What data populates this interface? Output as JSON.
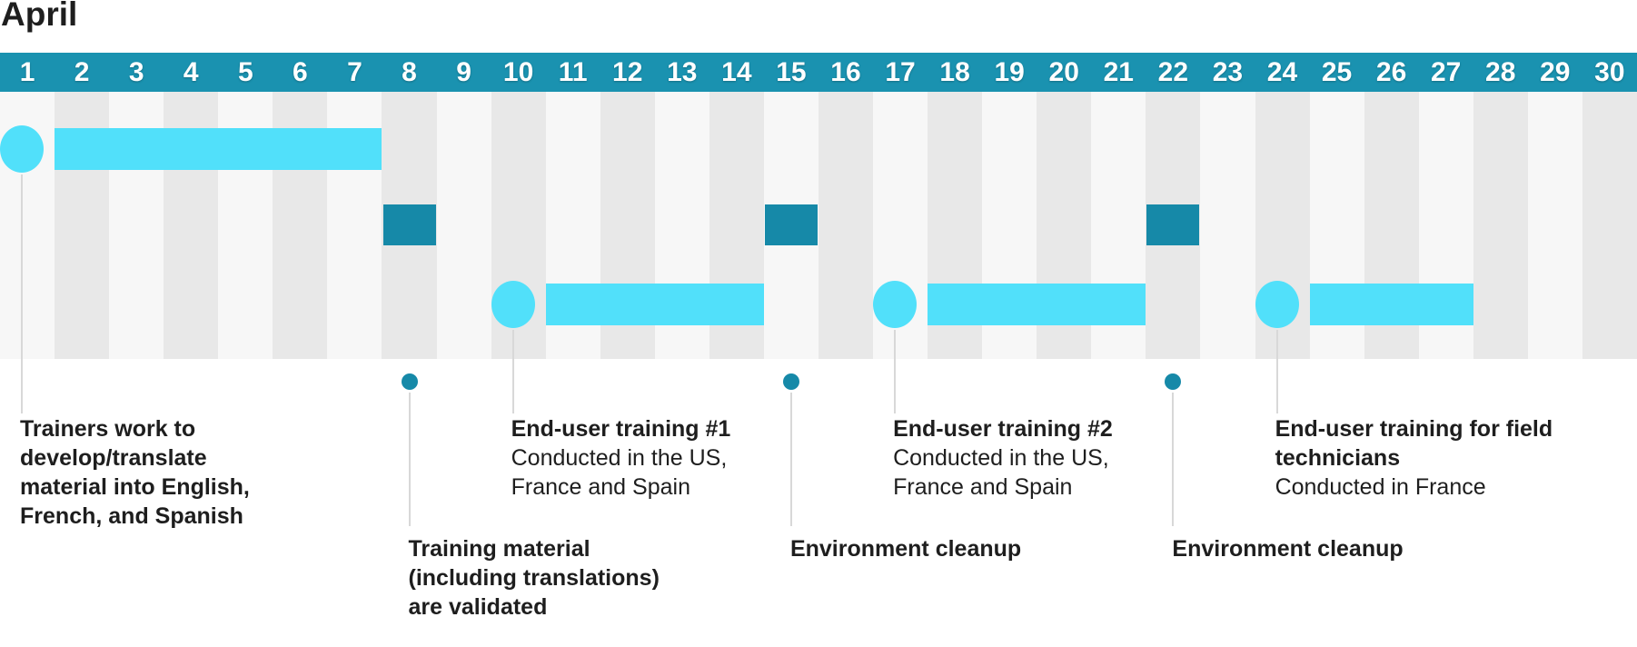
{
  "title": "April",
  "calendar": {
    "days": [
      1,
      2,
      3,
      4,
      5,
      6,
      7,
      8,
      9,
      10,
      11,
      12,
      13,
      14,
      15,
      16,
      17,
      18,
      19,
      20,
      21,
      22,
      23,
      24,
      25,
      26,
      27,
      28,
      29,
      30
    ]
  },
  "colors": {
    "header_teal": "#1a92b0",
    "milestone_teal": "#1689a8",
    "bar_cyan": "#51e0fa",
    "stripe_light": "#f7f7f7",
    "stripe_dark": "#e8e8e8",
    "connector_gray": "#d8d8d8",
    "text_dark": "#1e1e1e"
  },
  "chart_data": {
    "type": "gantt",
    "month": "April",
    "day_range": [
      1,
      30
    ],
    "tasks": [
      {
        "name": "Trainers work to develop/translate material into English, French, and Spanish",
        "marker_day": 1,
        "bar_start_day": 2,
        "bar_end_day": 7,
        "row": "top",
        "bold_lines": [
          "Trainers work to",
          "develop/translate",
          "material into English,",
          "French, and Spanish"
        ],
        "regular_lines": []
      },
      {
        "name": "End-user training #1",
        "marker_day": 10,
        "bar_start_day": 11,
        "bar_end_day": 14,
        "row": "bottom",
        "bold_lines": [
          "End-user training #1"
        ],
        "regular_lines": [
          "Conducted in the US,",
          "France and Spain"
        ]
      },
      {
        "name": "End-user training #2",
        "marker_day": 17,
        "bar_start_day": 18,
        "bar_end_day": 21,
        "row": "bottom",
        "bold_lines": [
          "End-user training #2"
        ],
        "regular_lines": [
          "Conducted in the US,",
          "France and Spain"
        ]
      },
      {
        "name": "End-user training for field technicians",
        "marker_day": 24,
        "bar_start_day": 25,
        "bar_end_day": 27,
        "row": "bottom",
        "bold_lines": [
          "End-user training for field",
          "technicians"
        ],
        "regular_lines": [
          "Conducted in France"
        ]
      }
    ],
    "milestones": [
      {
        "day": 8,
        "name": "Training material (including translations) are validated",
        "bold_lines": [
          "Training material",
          "(including translations)",
          "are validated"
        ]
      },
      {
        "day": 15,
        "name": "Environment cleanup",
        "bold_lines": [
          "Environment cleanup"
        ]
      },
      {
        "day": 22,
        "name": "Environment cleanup",
        "bold_lines": [
          "Environment cleanup"
        ]
      }
    ]
  }
}
